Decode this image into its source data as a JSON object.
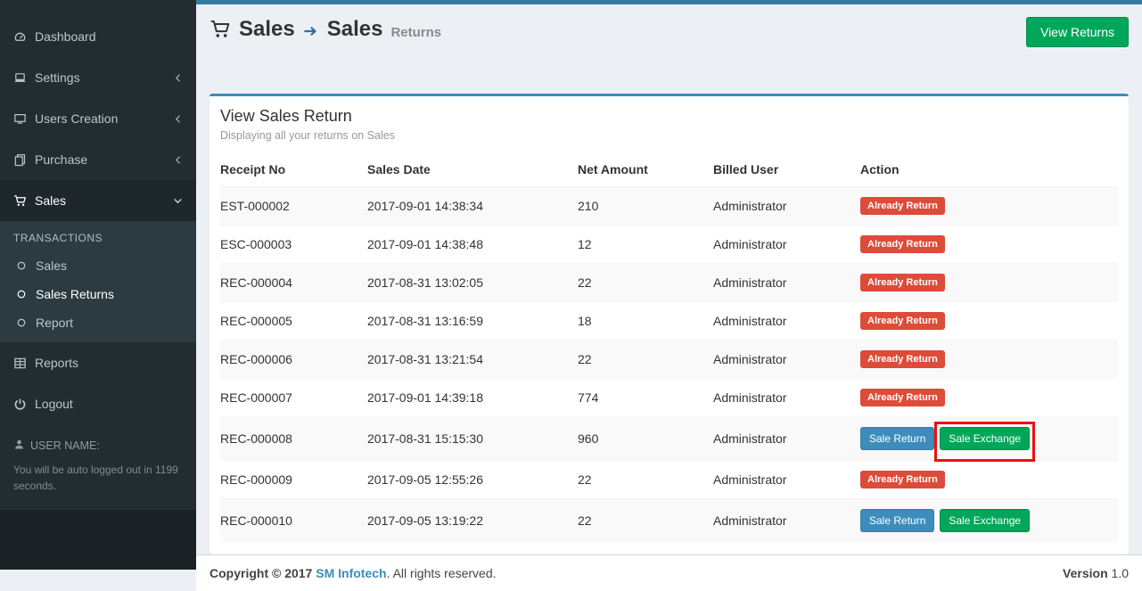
{
  "sidebar": {
    "items": [
      {
        "label": "Dashboard",
        "icon": "dashboard-icon"
      },
      {
        "label": "Settings",
        "icon": "laptop-icon",
        "chevron": "left"
      },
      {
        "label": "Users Creation",
        "icon": "desktop-icon",
        "chevron": "left"
      },
      {
        "label": "Purchase",
        "icon": "copy-icon",
        "chevron": "left"
      },
      {
        "label": "Sales",
        "icon": "cart-icon",
        "chevron": "down",
        "active": true
      }
    ],
    "submenu_header": "TRANSACTIONS",
    "submenu": [
      {
        "label": "Sales",
        "icon": "circle-o-icon"
      },
      {
        "label": "Sales Returns",
        "icon": "circle-o-icon",
        "active": true
      },
      {
        "label": "Report",
        "icon": "circle-o-icon"
      }
    ],
    "bottom_items": [
      {
        "label": "Reports",
        "icon": "table-icon"
      },
      {
        "label": "Logout",
        "icon": "power-icon"
      }
    ],
    "user_label": "USER NAME:",
    "logout_notice": "You will be auto logged out in 1199 seconds."
  },
  "header": {
    "title_icon": "cart-icon",
    "title_primary": "Sales",
    "arrow_icon": "arrow-right-icon",
    "title_secondary": "Sales",
    "title_sub": "Returns",
    "view_returns_label": "View Returns"
  },
  "card": {
    "title": "View Sales Return",
    "subtitle": "Displaying all your returns on Sales"
  },
  "table": {
    "headers": [
      "Receipt No",
      "Sales Date",
      "Net Amount",
      "Billed User",
      "Action"
    ],
    "badge_already": "Already Return",
    "btn_sale_return": "Sale Return",
    "btn_sale_exchange": "Sale Exchange",
    "rows": [
      {
        "receipt": "EST-000002",
        "date": "2017-09-01 14:38:34",
        "amount": "210",
        "user": "Administrator",
        "action": "already"
      },
      {
        "receipt": "ESC-000003",
        "date": "2017-09-01 14:38:48",
        "amount": "12",
        "user": "Administrator",
        "action": "already"
      },
      {
        "receipt": "REC-000004",
        "date": "2017-08-31 13:02:05",
        "amount": "22",
        "user": "Administrator",
        "action": "already"
      },
      {
        "receipt": "REC-000005",
        "date": "2017-08-31 13:16:59",
        "amount": "18",
        "user": "Administrator",
        "action": "already"
      },
      {
        "receipt": "REC-000006",
        "date": "2017-08-31 13:21:54",
        "amount": "22",
        "user": "Administrator",
        "action": "already"
      },
      {
        "receipt": "REC-000007",
        "date": "2017-09-01 14:39:18",
        "amount": "774",
        "user": "Administrator",
        "action": "already"
      },
      {
        "receipt": "REC-000008",
        "date": "2017-08-31 15:15:30",
        "amount": "960",
        "user": "Administrator",
        "action": "buttons",
        "highlight": true
      },
      {
        "receipt": "REC-000009",
        "date": "2017-09-05 12:55:26",
        "amount": "22",
        "user": "Administrator",
        "action": "already"
      },
      {
        "receipt": "REC-000010",
        "date": "2017-09-05 13:19:22",
        "amount": "22",
        "user": "Administrator",
        "action": "buttons"
      }
    ]
  },
  "footer": {
    "copyright_prefix": "Copyright © 2017",
    "company": "SM Infotech",
    "copyright_suffix": ". All rights reserved.",
    "version_label": "Version",
    "version_value": "1.0"
  },
  "colors": {
    "sidebar_bg": "#222d32",
    "sidebar_active_bg": "#1e282c",
    "submenu_bg": "#2c3b41",
    "accent_blue": "#3c8dbc",
    "green": "#00a65a",
    "red_badge": "#dd4b39",
    "annotation_red": "#ee0f0f",
    "content_bg": "#ecf0f5"
  }
}
